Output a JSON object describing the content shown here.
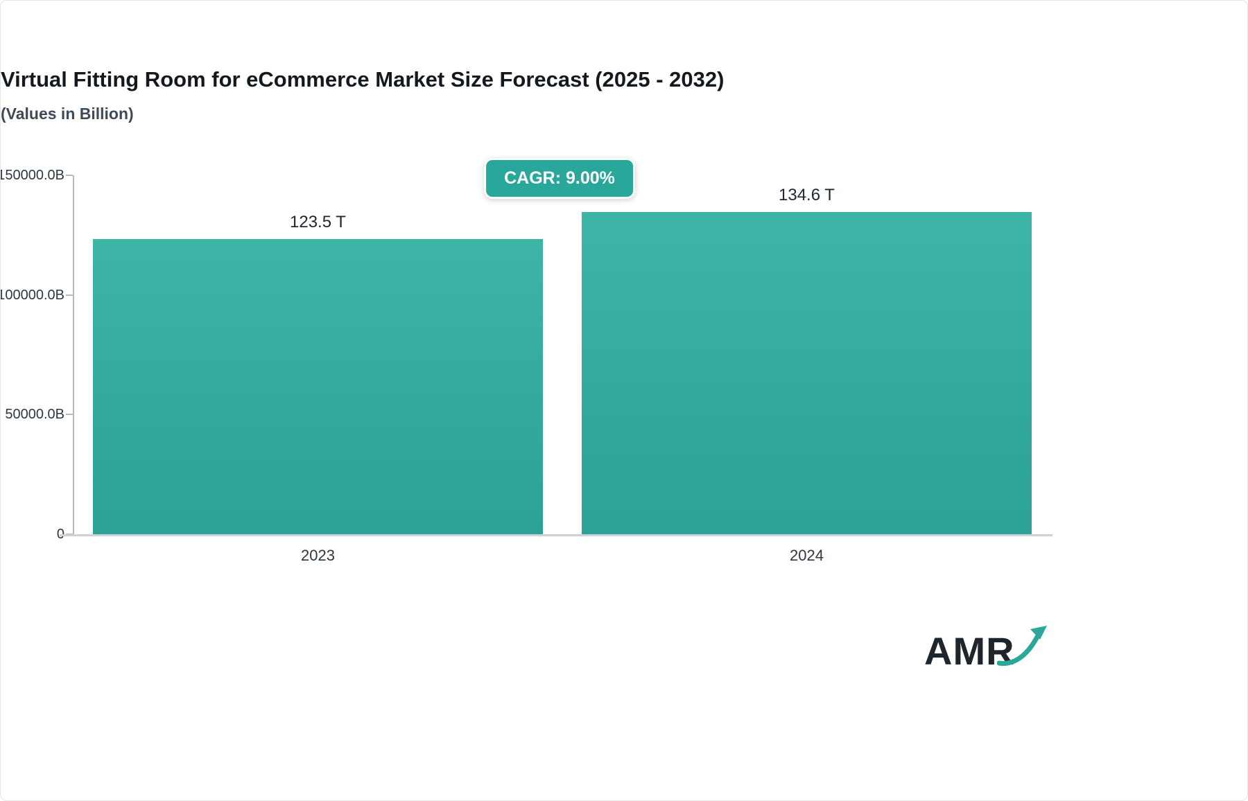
{
  "title": "Virtual Fitting Room for eCommerce Market Size Forecast (2025 - 2032)",
  "subtitle": "(Values in Billion)",
  "cagr_badge": "CAGR: 9.00%",
  "logo": {
    "text": "AMR"
  },
  "colors": {
    "accent": "#2aa79b",
    "bar_gradient_top": "#3cb5a6",
    "bar_gradient_bottom": "#2ba294"
  },
  "chart_data": {
    "type": "bar",
    "title": "Virtual Fitting Room for eCommerce Market Size Forecast (2025 - 2032)",
    "subtitle": "(Values in Billion)",
    "unit": "Billion",
    "categories": [
      "2023",
      "2024"
    ],
    "values": [
      123500,
      134600
    ],
    "value_labels": [
      "123.5 T",
      "134.6 T"
    ],
    "ylim": [
      0,
      150000
    ],
    "yticks": [
      0,
      50000,
      100000,
      150000
    ],
    "ytick_labels": [
      "0",
      "50000.0B",
      "100000.0B",
      "150000.0B"
    ],
    "xlabel": "",
    "ylabel": "",
    "grid": false,
    "legend": false,
    "annotations": [
      "CAGR: 9.00%"
    ]
  }
}
